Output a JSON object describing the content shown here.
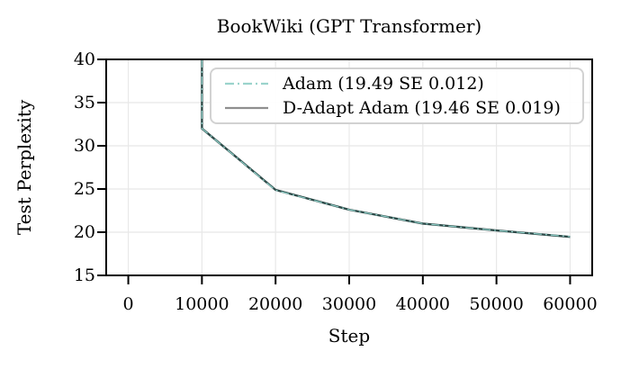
{
  "figure": {
    "background": "#ffffff"
  },
  "chart_data": {
    "type": "line",
    "title": "BookWiki (GPT Transformer)",
    "xlabel": "Step",
    "ylabel": "Test Perplexity",
    "xlim": [
      -3000,
      63000
    ],
    "ylim": [
      15,
      40
    ],
    "xticks": [
      0,
      10000,
      20000,
      30000,
      40000,
      50000,
      60000
    ],
    "yticks": [
      15,
      20,
      25,
      30,
      35,
      40
    ],
    "grid": true,
    "grid_color": "#e8e8e8",
    "axis_color": "#000000",
    "line_render": {
      "base_color": "#2d4a48",
      "overlay_color": "#8fd0c9"
    },
    "legend": {
      "position": "upper-right-inside",
      "border_color": "#d2d2d2"
    },
    "series": [
      {
        "name": "Adam (19.49 SE 0.012)",
        "legend_color": "#9bd3cc",
        "line_style": "dashdot",
        "x": [
          10000,
          20000,
          30000,
          40000,
          50000,
          60000
        ],
        "y": [
          32.0,
          24.85,
          22.6,
          21.0,
          20.2,
          19.49
        ],
        "enters_clipped_from_top": true
      },
      {
        "name": "D-Adapt Adam (19.46 SE 0.019)",
        "legend_color": "#8f8f8f",
        "line_style": "solid",
        "x": [
          10000,
          20000,
          30000,
          40000,
          50000,
          60000
        ],
        "y": [
          32.0,
          24.9,
          22.6,
          21.0,
          20.2,
          19.46
        ],
        "enters_clipped_from_top": true
      }
    ]
  }
}
